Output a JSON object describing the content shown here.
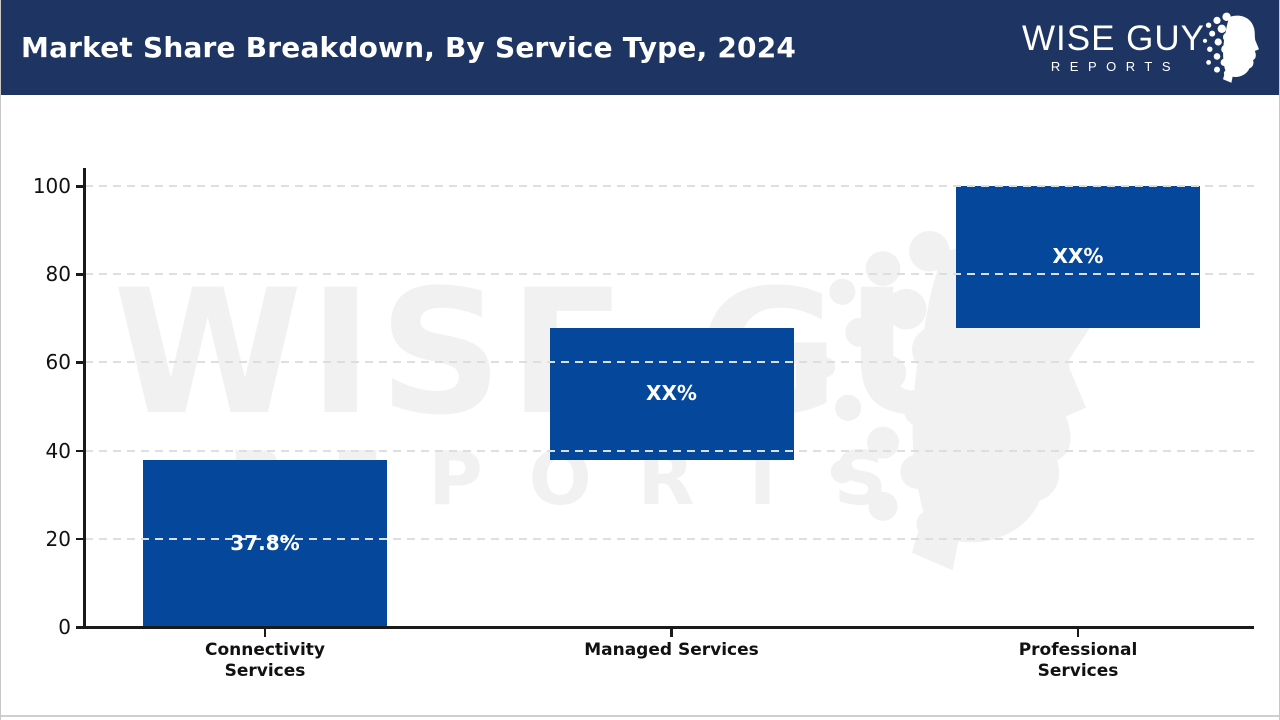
{
  "header": {
    "title": "Market Share Breakdown, By Service Type, 2024",
    "bg_color": "#1e3563",
    "logo": {
      "name": "WISE GUY",
      "sub": "REPORTS"
    }
  },
  "watermark": {
    "line1": "WISE GUY",
    "line2": "REPORTS"
  },
  "chart_data": {
    "type": "bar",
    "subtype": "floating-waterfall",
    "title": "Market Share Breakdown, By Service Type, 2024",
    "categories": [
      "Connectivity Services",
      "Managed Services",
      "Professional Services"
    ],
    "category_lines": [
      [
        "Connectivity",
        "Services"
      ],
      [
        "Managed Services"
      ],
      [
        "Professional",
        "Services"
      ]
    ],
    "bars": [
      {
        "category": "Connectivity Services",
        "start": 0,
        "end": 37.8,
        "label": "37.8%"
      },
      {
        "category": "Managed Services",
        "start": 37.8,
        "end": 67.8,
        "label": "XX%"
      },
      {
        "category": "Professional Services",
        "start": 67.8,
        "end": 100,
        "label": "XX%"
      }
    ],
    "ylim": [
      0,
      104
    ],
    "yticks": [
      0,
      20,
      40,
      60,
      80,
      100
    ],
    "grid": {
      "axis": "y",
      "style": "dashed",
      "color": "#dedede",
      "drawn_on_top": true
    },
    "legend": "none",
    "bar_color": "#05489b",
    "bar_label_color": "#ffffff",
    "axis_color": "#1a1a1a"
  }
}
